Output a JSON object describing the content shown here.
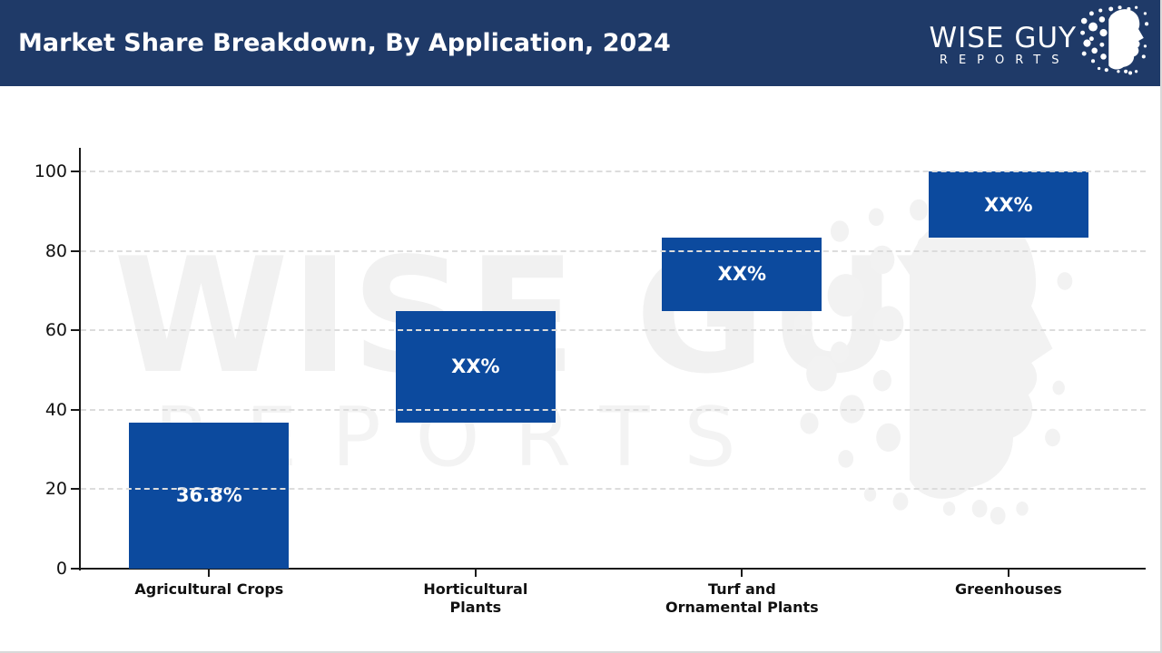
{
  "header": {
    "title": "Market Share Breakdown, By Application, 2024",
    "bg_color": "#1f3a68",
    "logo": {
      "wordmark": "WISE GUY",
      "subtitle": "REPORTS"
    }
  },
  "watermark": {
    "wordmark": "WISE GUY",
    "subtitle": "REPORTS"
  },
  "chart_data": {
    "type": "bar",
    "subtype": "waterfall",
    "title": "Market Share Breakdown, By Application, 2024",
    "categories": [
      "Agricultural Crops",
      "Horticultural Plants",
      "Turf and Ornamental Plants",
      "Greenhouses"
    ],
    "category_label_lines": [
      [
        "Agricultural Crops"
      ],
      [
        "Horticultural",
        "Plants"
      ],
      [
        "Turf and",
        "Ornamental Plants"
      ],
      [
        "Greenhouses"
      ]
    ],
    "segments": [
      {
        "category": "Agricultural Crops",
        "start": 0,
        "end": 36.8,
        "label": "36.8%"
      },
      {
        "category": "Horticultural Plants",
        "start": 36.8,
        "end": 64.9,
        "label": "XX%"
      },
      {
        "category": "Turf and Ornamental Plants",
        "start": 64.9,
        "end": 83.4,
        "label": "XX%"
      },
      {
        "category": "Greenhouses",
        "start": 83.4,
        "end": 100,
        "label": "XX%"
      }
    ],
    "ylim": [
      0,
      100
    ],
    "yticks": [
      0,
      20,
      40,
      60,
      80,
      100
    ],
    "grid": true,
    "legend": false,
    "bar_color": "#0c4a9e",
    "bar_label_color": "#ffffff",
    "gridline_color": "#dcdcdc",
    "axis_color": "#1a1a1a",
    "tick_label_color": "#111111"
  }
}
